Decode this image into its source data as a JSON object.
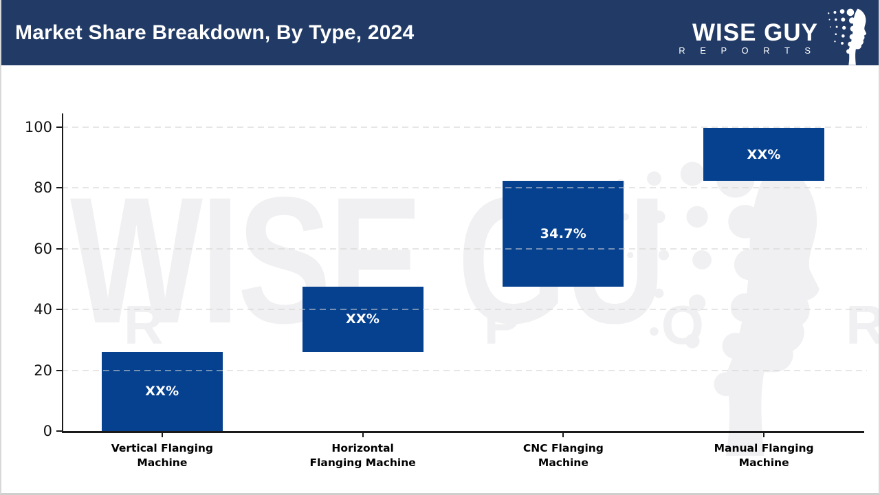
{
  "header": {
    "title": "Market Share Breakdown, By Type, 2024",
    "logo_line1": "WISE GUY",
    "logo_line2": "R E P O R T S"
  },
  "watermark": {
    "line1": "WISE GU",
    "line2": "R E P O R T S"
  },
  "colors": {
    "header_bg": "#213A66",
    "bar": "#05418F",
    "grid": "rgba(210,210,210,0.55)",
    "axis": "#1A1A1A",
    "watermark": "#F0F0F2",
    "bar_label": "#FFFFFF"
  },
  "chart_data": {
    "type": "bar",
    "subtype": "floating_waterfall_segments",
    "title": "Market Share Breakdown, By Type, 2024",
    "categories": [
      "Vertical Flanging Machine",
      "Horizontal Flanging Machine",
      "CNC Flanging Machine",
      "Manual Flanging Machine"
    ],
    "category_lines": [
      [
        "Vertical Flanging",
        "Machine"
      ],
      [
        "Horizontal",
        "Flanging Machine"
      ],
      [
        "CNC Flanging",
        "Machine"
      ],
      [
        "Manual Flanging",
        "Machine"
      ]
    ],
    "segments": [
      {
        "start": 0,
        "end": 26.1,
        "label": "XX%"
      },
      {
        "start": 26.1,
        "end": 47.6,
        "label": "XX%"
      },
      {
        "start": 47.6,
        "end": 82.3,
        "label": "34.7%"
      },
      {
        "start": 82.3,
        "end": 99.7,
        "label": "XX%"
      }
    ],
    "yticks": [
      0,
      20,
      40,
      60,
      80,
      100
    ],
    "ylim": [
      0,
      105
    ],
    "xlabel": "",
    "ylabel": "",
    "grid": "horizontal_dashed",
    "legend": "none"
  }
}
